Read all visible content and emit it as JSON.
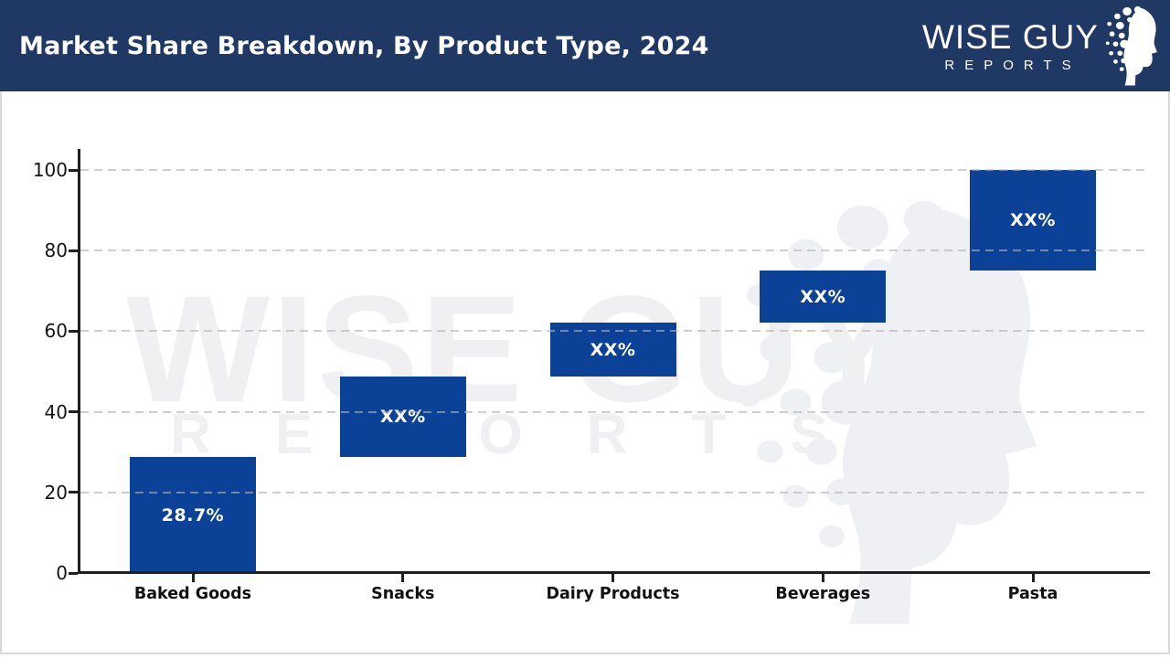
{
  "header": {
    "title": "Market Share Breakdown, By Product Type, 2024",
    "bg_color": "#203864",
    "logo": {
      "line1": "WISE GUY",
      "line2": "REPORTS",
      "head_icon": "dotted-head-profile"
    }
  },
  "watermark": {
    "line1": "WISE GUY",
    "line2": "REPORTS",
    "head_icon": "dotted-head-profile"
  },
  "chart_data": {
    "type": "bar",
    "subtype": "waterfall",
    "title": "Market Share Breakdown, By Product Type, 2024",
    "categories": [
      "Baked Goods",
      "Snacks",
      "Dairy Products",
      "Beverages",
      "Pasta"
    ],
    "segments": [
      {
        "category": "Baked Goods",
        "start": 0,
        "end": 28.7,
        "label": "28.7%"
      },
      {
        "category": "Snacks",
        "start": 28.7,
        "end": 48.7,
        "label": "XX%"
      },
      {
        "category": "Dairy Products",
        "start": 48.7,
        "end": 62.1,
        "label": "XX%"
      },
      {
        "category": "Beverages",
        "start": 62.1,
        "end": 75,
        "label": "XX%"
      },
      {
        "category": "Pasta",
        "start": 75,
        "end": 100,
        "label": "XX%"
      }
    ],
    "ylim": [
      0,
      100
    ],
    "yticks": [
      0,
      20,
      40,
      60,
      80,
      100
    ],
    "xlabel": "",
    "ylabel": "",
    "grid": "horizontal-dashed",
    "legend": "none",
    "bar_color": "#0b4197",
    "bar_label_color": "#ffffff",
    "axis_color": "#1f1f1f",
    "gridline_color": "#d9d9d9"
  }
}
